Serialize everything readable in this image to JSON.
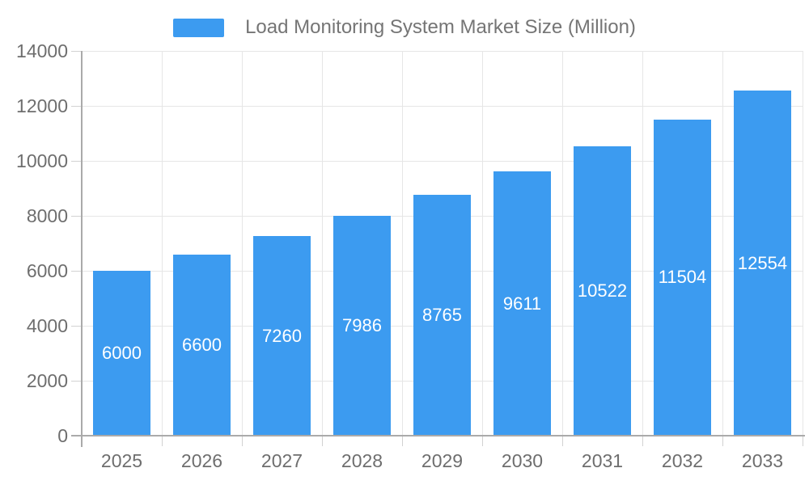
{
  "chart_data": {
    "type": "bar",
    "title": "",
    "legend": {
      "label": "Load Monitoring System Market Size (Million)",
      "position": "top"
    },
    "categories": [
      "2025",
      "2026",
      "2027",
      "2028",
      "2029",
      "2030",
      "2031",
      "2032",
      "2033"
    ],
    "values": [
      6000,
      6600,
      7260,
      7986,
      8765,
      9611,
      10522,
      11504,
      12554
    ],
    "value_labels_shown": true,
    "xlabel": "",
    "ylabel": "",
    "ylim": [
      0,
      14000
    ],
    "ytick_step": 2000,
    "ytick_labels": [
      "0",
      "2000",
      "4000",
      "6000",
      "8000",
      "10000",
      "12000",
      "14000"
    ],
    "grid": true,
    "colors": {
      "bar": "#3C9BF0",
      "value_label": "#FFFFFF",
      "axis_label": "#6E6E6E",
      "legend_text": "#757575",
      "axis_line": "#AAAAAA",
      "grid_line": "#E6E6E6",
      "tick_line": "#D2D2D2",
      "background": "#FFFFFF"
    }
  }
}
